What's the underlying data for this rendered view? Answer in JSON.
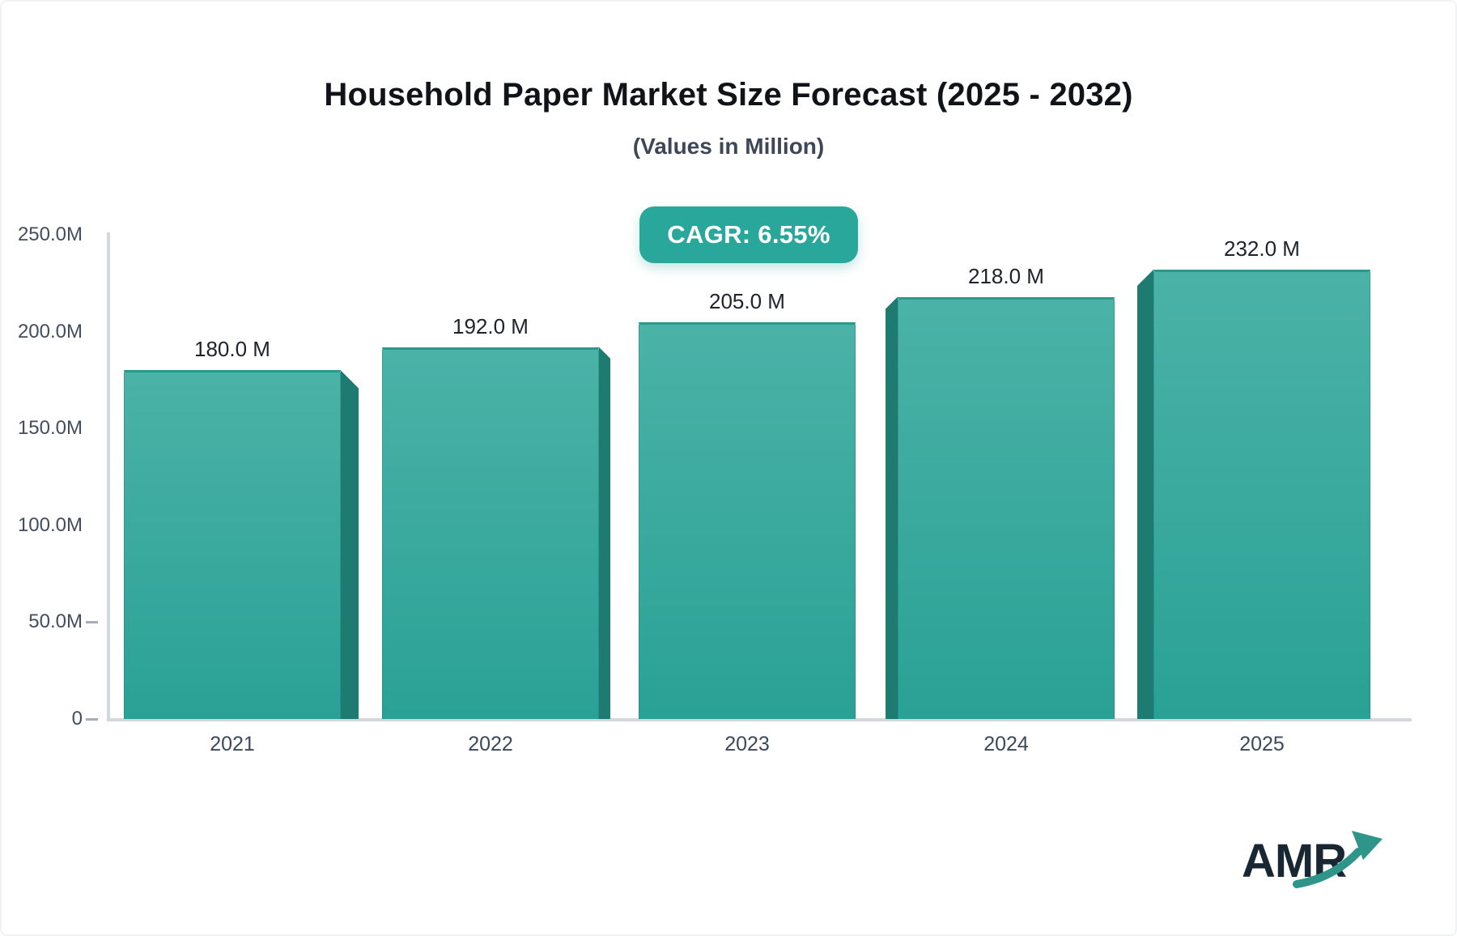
{
  "header": {
    "title": "Household Paper Market Size Forecast (2025 - 2032)",
    "subtitle": "(Values in Million)"
  },
  "badge": {
    "label": "CAGR: 6.55%"
  },
  "logo": {
    "text": "AMR"
  },
  "colors": {
    "badge_bg": "#2aa79b",
    "bar_gradient_top": "#4bb2a7",
    "bar_gradient_bottom": "#2aa195",
    "bar_side": "#1e7b72",
    "bar_edge": "#2a9a8f",
    "axis_line": "#d3d7de",
    "tick_text": "#424d5f",
    "value_text": "#1d222b",
    "logo_text": "#182731",
    "logo_arrow": "#2f958b"
  },
  "chart_data": {
    "type": "bar",
    "title": "Household Paper Market Size Forecast (2025 - 2032)",
    "subtitle": "(Values in Million)",
    "annotation": "CAGR: 6.55%",
    "categories": [
      "2021",
      "2022",
      "2023",
      "2024",
      "2025"
    ],
    "values": [
      180.0,
      192.0,
      205.0,
      218.0,
      232.0
    ],
    "value_labels": [
      "180.0 M",
      "192.0 M",
      "205.0 M",
      "218.0 M",
      "232.0 M"
    ],
    "unit": "Million",
    "xlabel": "",
    "ylabel": "",
    "ylim": [
      0,
      250
    ],
    "yticks": [
      {
        "value": 250,
        "label": "250.0M"
      },
      {
        "value": 200,
        "label": "200.0M"
      },
      {
        "value": 150,
        "label": "150.0M"
      },
      {
        "value": 100,
        "label": "100.0M"
      },
      {
        "value": 50,
        "label": "50.0M"
      },
      {
        "value": 0,
        "label": "0"
      }
    ],
    "grid": false,
    "legend": false
  }
}
